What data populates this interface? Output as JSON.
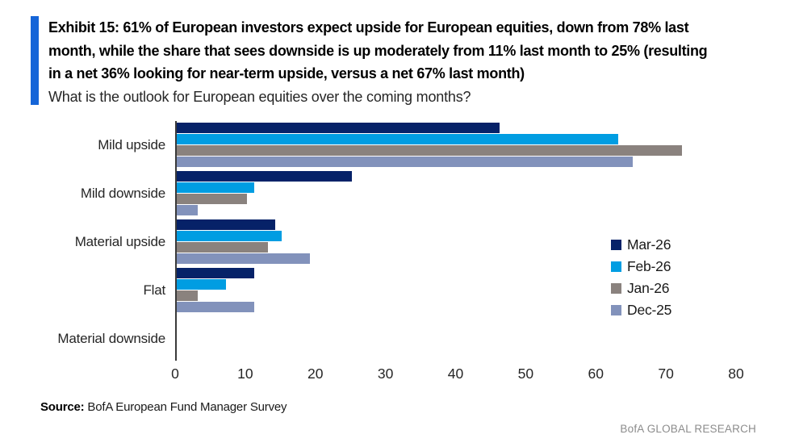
{
  "header": {
    "title_lines": [
      "Exhibit 15: 61% of European investors expect upside for European equities, down from 78% last",
      "month, while the share that sees downside is up moderately from 11% last month to 25% (resulting",
      "in a net 36% looking for near-term upside, versus a net 67% last month)"
    ],
    "subtitle": "What is the outlook for European equities over the coming months?",
    "accent_color": "#1565d8"
  },
  "chart_data": {
    "type": "bar",
    "orientation": "horizontal",
    "categories": [
      "Mild upside",
      "Mild downside",
      "Material upside",
      "Flat",
      "Material downside"
    ],
    "series": [
      {
        "name": "Mar-26",
        "color": "#062268",
        "values": [
          46,
          25,
          14,
          11,
          0
        ]
      },
      {
        "name": "Feb-26",
        "color": "#009de2",
        "values": [
          63,
          11,
          15,
          7,
          0
        ]
      },
      {
        "name": "Jan-26",
        "color": "#8a827e",
        "values": [
          72,
          10,
          13,
          3,
          0
        ]
      },
      {
        "name": "Dec-25",
        "color": "#8292bb",
        "values": [
          65,
          3,
          19,
          11,
          0
        ]
      }
    ],
    "xlim": [
      0,
      80
    ],
    "xticks": [
      0,
      10,
      20,
      30,
      40,
      50,
      60,
      70,
      80
    ],
    "xlabel": "",
    "ylabel": "",
    "title": "What is the outlook for European equities over the coming months?",
    "legend_position": "right",
    "grid": false,
    "axis_color": "#3a3a3a"
  },
  "footer": {
    "source_label": "Source:",
    "source_text": " BofA European Fund Manager Survey",
    "brand": "BofA GLOBAL RESEARCH"
  }
}
